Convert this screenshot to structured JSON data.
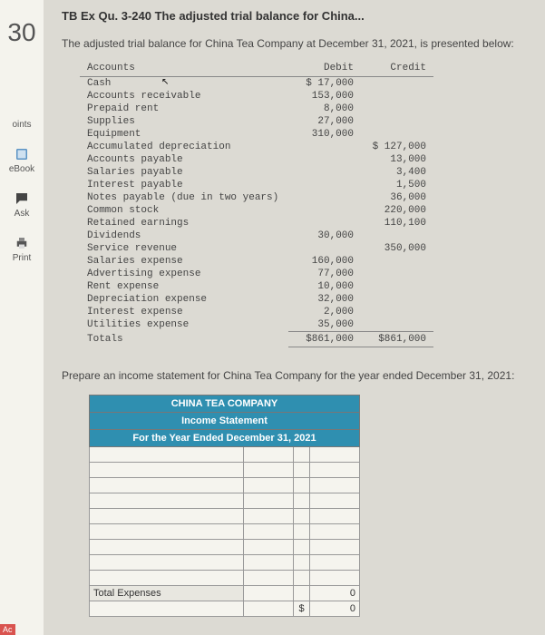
{
  "nav": {
    "question_number": "30",
    "items": [
      {
        "name": "oints",
        "label": "oints"
      },
      {
        "name": "ebook",
        "label": "eBook"
      },
      {
        "name": "ask",
        "label": "Ask"
      },
      {
        "name": "print",
        "label": "Print"
      }
    ]
  },
  "header": {
    "title": "TB Ex Qu. 3-240 The adjusted trial balance for China...",
    "subtitle": "The adjusted trial balance for China Tea Company at December 31, 2021, is presented below:"
  },
  "trial_balance": {
    "columns": [
      "Accounts",
      "Debit",
      "Credit"
    ],
    "rows": [
      {
        "acct": "Cash",
        "debit": "$ 17,000",
        "credit": ""
      },
      {
        "acct": "Accounts receivable",
        "debit": "153,000",
        "credit": ""
      },
      {
        "acct": "Prepaid rent",
        "debit": "8,000",
        "credit": ""
      },
      {
        "acct": "Supplies",
        "debit": "27,000",
        "credit": ""
      },
      {
        "acct": "Equipment",
        "debit": "310,000",
        "credit": ""
      },
      {
        "acct": "Accumulated depreciation",
        "debit": "",
        "credit": "$ 127,000"
      },
      {
        "acct": "Accounts payable",
        "debit": "",
        "credit": "13,000"
      },
      {
        "acct": "Salaries payable",
        "debit": "",
        "credit": "3,400"
      },
      {
        "acct": "Interest payable",
        "debit": "",
        "credit": "1,500"
      },
      {
        "acct": "Notes payable (due in two years)",
        "debit": "",
        "credit": "36,000"
      },
      {
        "acct": "Common stock",
        "debit": "",
        "credit": "220,000"
      },
      {
        "acct": "Retained earnings",
        "debit": "",
        "credit": "110,100"
      },
      {
        "acct": "Dividends",
        "debit": "30,000",
        "credit": ""
      },
      {
        "acct": "Service revenue",
        "debit": "",
        "credit": "350,000"
      },
      {
        "acct": "Salaries expense",
        "debit": "160,000",
        "credit": ""
      },
      {
        "acct": "Advertising expense",
        "debit": "77,000",
        "credit": ""
      },
      {
        "acct": "Rent expense",
        "debit": "10,000",
        "credit": ""
      },
      {
        "acct": "Depreciation expense",
        "debit": "32,000",
        "credit": ""
      },
      {
        "acct": "Interest expense",
        "debit": "2,000",
        "credit": ""
      },
      {
        "acct": "Utilities expense",
        "debit": "35,000",
        "credit": ""
      }
    ],
    "totals": {
      "label": "Totals",
      "debit": "$861,000",
      "credit": "$861,000"
    }
  },
  "instruction": "Prepare an income statement for China Tea Company for the year ended December 31, 2021:",
  "income_statement": {
    "company": "CHINA TEA COMPANY",
    "title": "Income Statement",
    "period": "For the Year Ended December 31, 2021",
    "blank_rows": 9,
    "total_label": "Total Expenses",
    "total_value1": "0",
    "currency": "$",
    "total_value2": "0"
  },
  "badge": "Ac"
}
